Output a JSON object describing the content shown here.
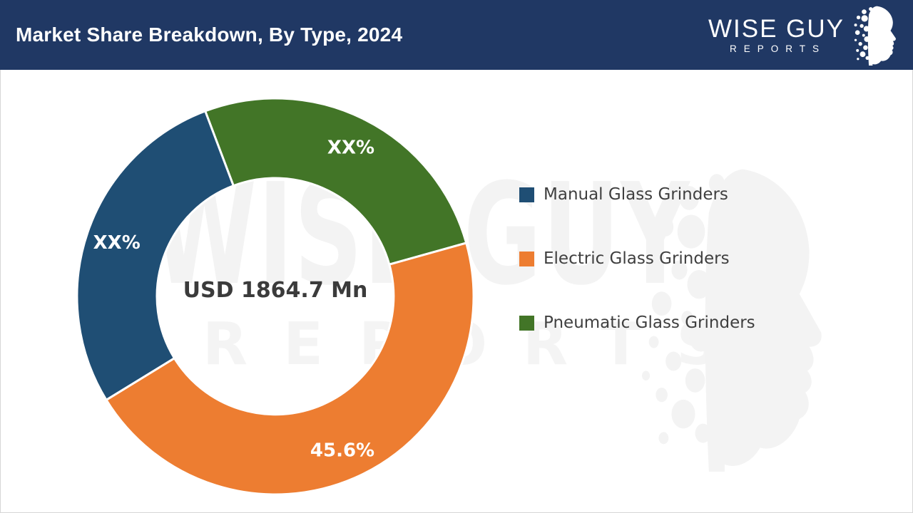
{
  "header": {
    "title": "Market Share Breakdown, By Type, 2024",
    "logo": {
      "name": "WISE GUY",
      "subtitle": "REPORTS"
    }
  },
  "watermark": {
    "line1": "WISE GUY",
    "line2": "REPORTS"
  },
  "chart_data": {
    "type": "pie",
    "subtype": "donut",
    "title": "Market Share Breakdown, By Type, 2024",
    "center_label": "USD 1864.7 Mn",
    "legend_position": "right",
    "start_angle_deg": -20.7,
    "segments": [
      {
        "label": "Pneumatic Glass Grinders",
        "display_value": "XX%",
        "percent": 26.4,
        "masked": true,
        "color": "#427527"
      },
      {
        "label": "Electric Glass Grinders",
        "display_value": "45.6%",
        "percent": 45.6,
        "masked": false,
        "color": "#ED7D31"
      },
      {
        "label": "Manual Glass Grinders",
        "display_value": "XX%",
        "percent": 28.0,
        "masked": true,
        "color": "#1F4E74"
      }
    ]
  },
  "legend": {
    "items": [
      {
        "label": "Manual Glass Grinders",
        "color": "#1F4E74"
      },
      {
        "label": "Electric Glass Grinders",
        "color": "#ED7D31"
      },
      {
        "label": "Pneumatic Glass Grinders",
        "color": "#427527"
      }
    ]
  },
  "colors": {
    "header_bg": "#203864",
    "watermark": "#f3f3f3",
    "center_text": "#3b3b3b",
    "legend_text": "#3f3f3f"
  }
}
